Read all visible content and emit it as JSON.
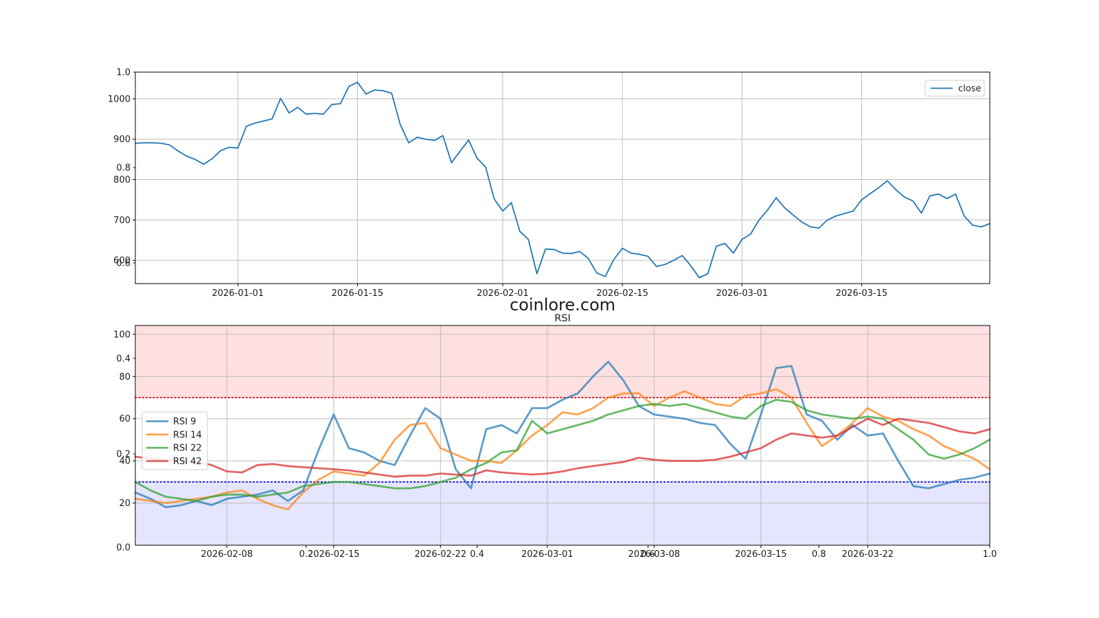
{
  "watermark": "coinlore.com",
  "colors": {
    "close_line": "#1f77b4",
    "rsi9_line": "rgba(31,119,180,0.72)",
    "rsi14_line": "rgba(255,127,14,0.72)",
    "rsi22_line": "rgba(44,160,44,0.72)",
    "rsi42_line": "rgba(214,39,40,0.72)",
    "grid": "#bdbdbd",
    "axis": "#000000",
    "overbought_band": "rgba(255,0,0,0.12)",
    "oversold_band": "rgba(0,0,255,0.10)",
    "overbought_line": "#dd0000",
    "oversold_line": "#0000cc",
    "legend_border": "#cccccc",
    "watermark_color": "#9e9e9e"
  },
  "chart_data": [
    {
      "type": "line",
      "title": "",
      "legend": [
        "close"
      ],
      "legend_position": "top-right",
      "x_start_date": "2025-12-20",
      "x_end_date": "2026-03-30",
      "x_tick_labels": [
        "2026-01-01",
        "2026-01-15",
        "2026-02-01",
        "2026-02-15",
        "2026-03-01",
        "2026-03-15"
      ],
      "x_tick_index": [
        12,
        26,
        43,
        57,
        71,
        85
      ],
      "y_ticks": [
        600,
        700,
        800,
        900,
        1000
      ],
      "ylim": [
        542,
        1066
      ],
      "grid": true,
      "series": [
        {
          "name": "close",
          "values": [
            890,
            891,
            891,
            890,
            886,
            871,
            858,
            850,
            838,
            852,
            872,
            880,
            878,
            932,
            940,
            945,
            950,
            1001,
            965,
            979,
            962,
            964,
            962,
            986,
            988,
            1031,
            1041,
            1012,
            1022,
            1020,
            1014,
            937,
            891,
            905,
            900,
            897,
            909,
            842,
            870,
            898,
            853,
            831,
            752,
            722,
            743,
            672,
            652,
            567,
            628,
            627,
            618,
            617,
            622,
            605,
            569,
            560,
            602,
            630,
            618,
            615,
            610,
            585,
            590,
            600,
            612,
            587,
            557,
            567,
            635,
            642,
            618,
            652,
            665,
            700,
            725,
            755,
            730,
            712,
            695,
            683,
            680,
            700,
            710,
            716,
            722,
            750,
            765,
            780,
            797,
            775,
            757,
            747,
            717,
            760,
            764,
            753,
            764,
            710,
            687,
            683,
            691
          ]
        }
      ]
    },
    {
      "type": "line",
      "title": "RSI",
      "legend": [
        "RSI 9",
        "RSI 14",
        "RSI 22",
        "RSI 42"
      ],
      "legend_position": "center-left",
      "x_start_date": "2026-02-02",
      "x_end_date": "2026-03-30",
      "x_tick_labels": [
        "2026-02-08",
        "2026-02-15",
        "2026-02-22",
        "2026-03-01",
        "2026-03-08",
        "2026-03-15",
        "2026-03-22"
      ],
      "x_tick_index": [
        6,
        13,
        20,
        27,
        34,
        41,
        48
      ],
      "y_ticks": [
        20,
        40,
        60,
        80,
        100
      ],
      "ylim": [
        0,
        104
      ],
      "grid": true,
      "overbought_threshold": 70,
      "oversold_threshold": 30,
      "series": [
        {
          "name": "RSI 9",
          "values": [
            25,
            22,
            18,
            19,
            21,
            19,
            22,
            23,
            24,
            26,
            21,
            26,
            45,
            62,
            46,
            44,
            40,
            38,
            52,
            65,
            60,
            36,
            27,
            55,
            57,
            53,
            65,
            65,
            69,
            72,
            80,
            87,
            78,
            66,
            62,
            61,
            60,
            58,
            57,
            48,
            41,
            62,
            84,
            85,
            62,
            59,
            50,
            57,
            52,
            53,
            40,
            28,
            27,
            29,
            31,
            32,
            34
          ]
        },
        {
          "name": "RSI 14",
          "values": [
            22,
            21,
            20,
            21,
            22,
            23,
            25,
            26,
            22,
            19,
            17,
            25,
            31,
            35,
            34,
            33,
            39,
            50,
            57,
            58,
            46,
            43,
            40,
            40,
            39,
            45,
            52,
            57,
            63,
            62,
            65,
            70,
            72,
            72,
            66,
            70,
            73,
            70,
            67,
            66,
            71,
            72,
            74,
            70,
            58,
            47,
            52,
            58,
            65,
            61,
            59,
            55,
            52,
            47,
            44,
            41,
            36
          ]
        },
        {
          "name": "RSI 22",
          "values": [
            30,
            26,
            23,
            22,
            21,
            23,
            24,
            24,
            23,
            24,
            25,
            28,
            29,
            30,
            30,
            29,
            28,
            27,
            27,
            28,
            30,
            32,
            36,
            39,
            44,
            45,
            59,
            53,
            55,
            57,
            59,
            62,
            64,
            66,
            67,
            66,
            67,
            65,
            63,
            61,
            60,
            66,
            69,
            68,
            64,
            62,
            61,
            60,
            61,
            60,
            55,
            50,
            43,
            41,
            43,
            46,
            50
          ]
        },
        {
          "name": "RSI 42",
          "values": [
            42,
            41,
            40.5,
            40,
            39.5,
            38,
            35,
            34.5,
            38,
            38.5,
            37.5,
            37,
            36.5,
            36,
            35.5,
            34.5,
            33.5,
            32.5,
            33,
            33,
            34,
            33.5,
            33,
            35.5,
            34.5,
            34,
            33.5,
            34,
            35,
            36.5,
            37.5,
            38.5,
            39.5,
            41.5,
            40.5,
            40,
            40,
            40,
            40.5,
            42,
            44,
            46,
            50,
            53,
            52,
            51,
            52,
            56,
            60,
            57,
            60,
            59,
            58,
            56,
            54,
            53,
            55
          ]
        }
      ]
    }
  ],
  "overlay_axis": {
    "y_tick_labels": [
      "1.0",
      "0.8",
      "0.6",
      "0.4",
      "0.2",
      "0.0"
    ],
    "x_tick_labels": [
      "0.2",
      "0.4",
      "0.6",
      "0.8",
      "1.0"
    ]
  }
}
